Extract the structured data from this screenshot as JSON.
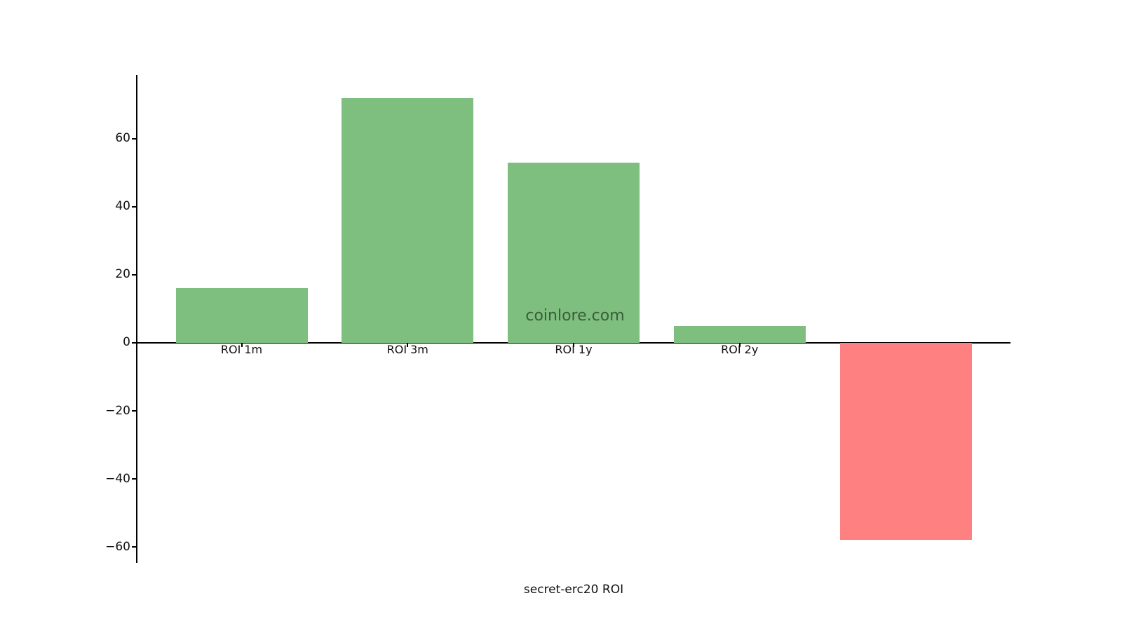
{
  "chart_data": {
    "type": "bar",
    "title": "secret-erc20 ROI",
    "categories": [
      "ROI 1m",
      "ROI 3m",
      "ROI 1y",
      "ROI 2y",
      ""
    ],
    "values": [
      16,
      72,
      53,
      5,
      -58
    ],
    "positive_color": "#7ebe7e",
    "negative_color": "#ff8080",
    "axis_color": "#000000",
    "xlabel": "",
    "ylabel": "",
    "ylim": [
      -64.5,
      78.5
    ],
    "yticks": [
      {
        "value": 60,
        "label": "60"
      },
      {
        "value": 40,
        "label": "40"
      },
      {
        "value": 20,
        "label": "20"
      },
      {
        "value": 0,
        "label": "0"
      },
      {
        "value": -20,
        "label": "−20"
      },
      {
        "value": -40,
        "label": "−40"
      },
      {
        "value": -60,
        "label": "−60"
      }
    ],
    "grid": false,
    "legend_position": "none",
    "watermark": "coinlore.com"
  }
}
